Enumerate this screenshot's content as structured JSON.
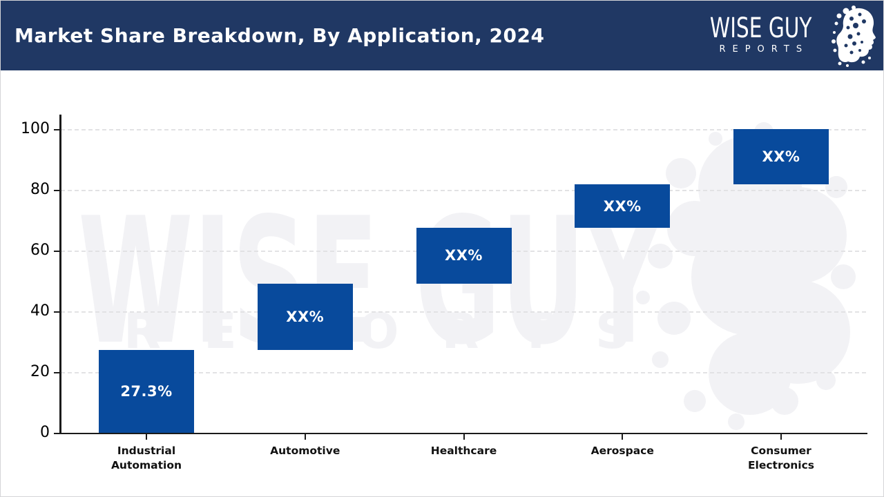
{
  "header": {
    "title": "Market Share Breakdown, By Application, 2024",
    "logo": {
      "line1": "WISE GUY",
      "line2": "REPORTS"
    }
  },
  "watermark": {
    "line1": "WISE GUY",
    "line2": "REPORTS"
  },
  "colors": {
    "header_bg": "#203864",
    "bar": "#084a9c",
    "bar_label": "#ffffff",
    "grid": "#e2e2e4",
    "axis": "#1a1a1a",
    "watermark": "#f2f2f5",
    "page_bg": "#ffffff"
  },
  "chart_data": {
    "type": "bar",
    "subtype": "waterfall",
    "title": "Market Share Breakdown, By Application, 2024",
    "categories": [
      "Industrial\nAutomation",
      "Automotive",
      "Healthcare",
      "Aerospace",
      "Consumer\nElectronics"
    ],
    "segments": [
      {
        "category": "Industrial Automation",
        "start": 0,
        "end": 27.3,
        "label": "27.3%"
      },
      {
        "category": "Automotive",
        "start": 27.3,
        "end": 49.1,
        "label": "XX%"
      },
      {
        "category": "Healthcare",
        "start": 49.1,
        "end": 67.5,
        "label": "XX%"
      },
      {
        "category": "Aerospace",
        "start": 67.5,
        "end": 81.8,
        "label": "XX%"
      },
      {
        "category": "Consumer Electronics",
        "start": 81.8,
        "end": 100,
        "label": "XX%"
      }
    ],
    "yticks": [
      0,
      20,
      40,
      60,
      80,
      100
    ],
    "ylim": [
      0,
      105
    ],
    "xlabel": "",
    "ylabel": "",
    "grid": "dashed-horizontal",
    "legend": "none"
  }
}
